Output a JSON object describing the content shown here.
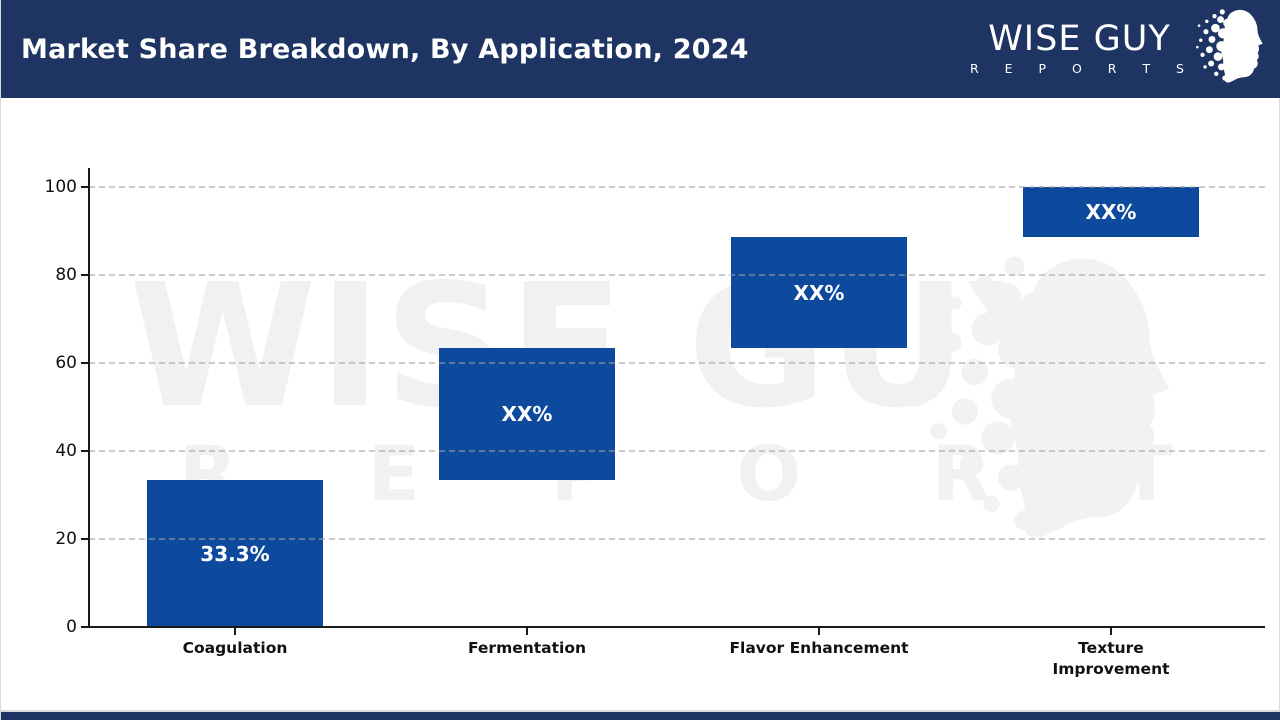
{
  "header": {
    "title": "Market Share Breakdown, By Application, 2024",
    "logo": {
      "name": "WISE GUY",
      "tagline": "R E P O R T S"
    }
  },
  "watermark": {
    "name": "WISE GUY",
    "tagline": "R E P O R T S"
  },
  "colors": {
    "header_bg": "#1e3563",
    "footer_bg": "#1e3563",
    "bar": "#0d4a9d",
    "bar_label_text": "#ffffff",
    "axis": "#1a1a1a",
    "gridline": "rgba(160,160,160,0.55)",
    "watermark": "#f1f1f1"
  },
  "chart_data": {
    "type": "bar",
    "variant": "floating-segment-waterfall",
    "title": "Market Share Breakdown, By Application, 2024",
    "categories": [
      "Coagulation",
      "Fermentation",
      "Flavor Enhancement",
      "Texture\nImprovement"
    ],
    "segments": [
      {
        "category": "Coagulation",
        "start": 0,
        "end": 33.3,
        "label": "33.3%"
      },
      {
        "category": "Fermentation",
        "start": 33.3,
        "end": 63.4,
        "label": "XX%"
      },
      {
        "category": "Flavor Enhancement",
        "start": 63.4,
        "end": 88.6,
        "label": "XX%"
      },
      {
        "category": "Texture Improvement",
        "start": 88.6,
        "end": 100,
        "label": "XX%"
      }
    ],
    "ylim": [
      0,
      100
    ],
    "yticks": [
      0,
      20,
      40,
      60,
      80,
      100
    ],
    "xlabel": "",
    "ylabel": "",
    "grid": {
      "axis": "y",
      "style": "dashed",
      "drawn_above_bars": true
    },
    "legend": "none",
    "bar_color": "#0d4a9d"
  }
}
